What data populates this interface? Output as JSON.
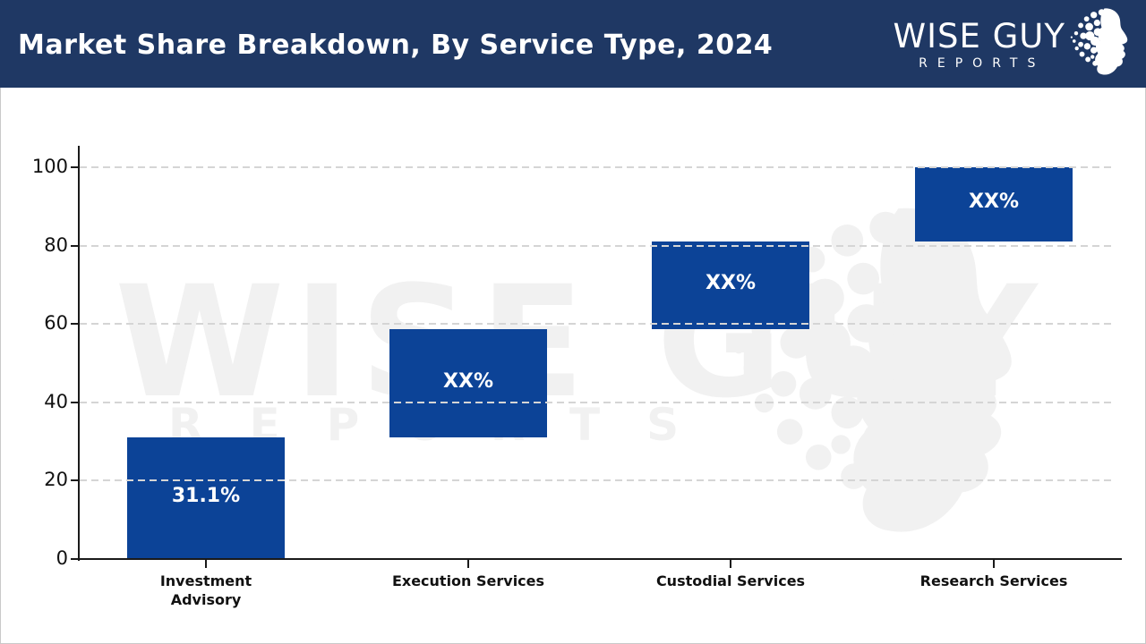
{
  "header": {
    "title": "Market Share Breakdown, By Service Type, 2024",
    "logo": {
      "line1": "WISE GUY",
      "line2": "REPORTS"
    }
  },
  "watermark": {
    "line1": "WISE GUY",
    "line2": "REPORTS"
  },
  "chart_data": {
    "type": "bar",
    "subtype": "waterfall",
    "title": "Market Share Breakdown, By Service Type, 2024",
    "categories": [
      "Investment\nAdvisory",
      "Execution Services",
      "Custodial Services",
      "Research Services"
    ],
    "segments": [
      {
        "category": "Investment Advisory",
        "label": "31.1%",
        "start": 0,
        "end": 31.1
      },
      {
        "category": "Execution Services",
        "label": "XX%",
        "start": 31.1,
        "end": 58.6
      },
      {
        "category": "Custodial Services",
        "label": "XX%",
        "start": 58.6,
        "end": 81.1
      },
      {
        "category": "Research Services",
        "label": "XX%",
        "start": 81.1,
        "end": 100
      }
    ],
    "ylim": [
      0,
      100
    ],
    "yticks": [
      0,
      20,
      40,
      60,
      80,
      100
    ],
    "xlabel": "",
    "ylabel": "",
    "grid": "horizontal-dashed-over-bars",
    "legend": "none",
    "bar_color": "#0c4397",
    "bar_label_color": "#ffffff"
  },
  "colors": {
    "header_bg": "#1f3864",
    "axis": "#1a1a1a",
    "gridline": "#d5d5d5",
    "watermark": "#f1f1f1"
  }
}
